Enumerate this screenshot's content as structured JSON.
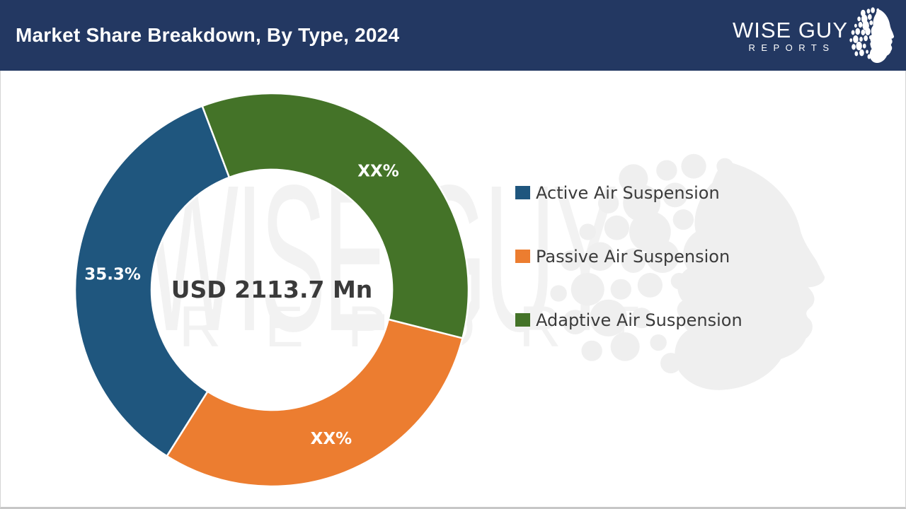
{
  "header": {
    "title": "Market Share Breakdown, By Type, 2024",
    "logo": {
      "line1": "WISE GUY",
      "line2": "REPORTS"
    }
  },
  "watermark": {
    "line1": "WISE GUY",
    "line2": "REPORTS"
  },
  "chart_data": {
    "type": "pie",
    "subtype": "donut",
    "title": "Market Share Breakdown, By Type, 2024",
    "center_label": "USD 2113.7 Mn",
    "unit": "percent",
    "start_angle_deg": 110.7,
    "direction": "counterclockwise",
    "legend_position": "right",
    "slices": [
      {
        "name": "Active Air Suspension",
        "value": 35.3,
        "label": "35.3%",
        "color": "#1F567E"
      },
      {
        "name": "Passive Air Suspension",
        "value": 30.0,
        "label": "XX%",
        "color": "#EC7D30"
      },
      {
        "name": "Adaptive Air Suspension",
        "value": 34.7,
        "label": "XX%",
        "color": "#447328"
      }
    ]
  },
  "colors": {
    "header_bg": "#233862",
    "center_text": "#3A3A3A",
    "legend_text": "#3B3B3B",
    "watermark": "#F2F2F2",
    "border": "#C7C7C7"
  }
}
